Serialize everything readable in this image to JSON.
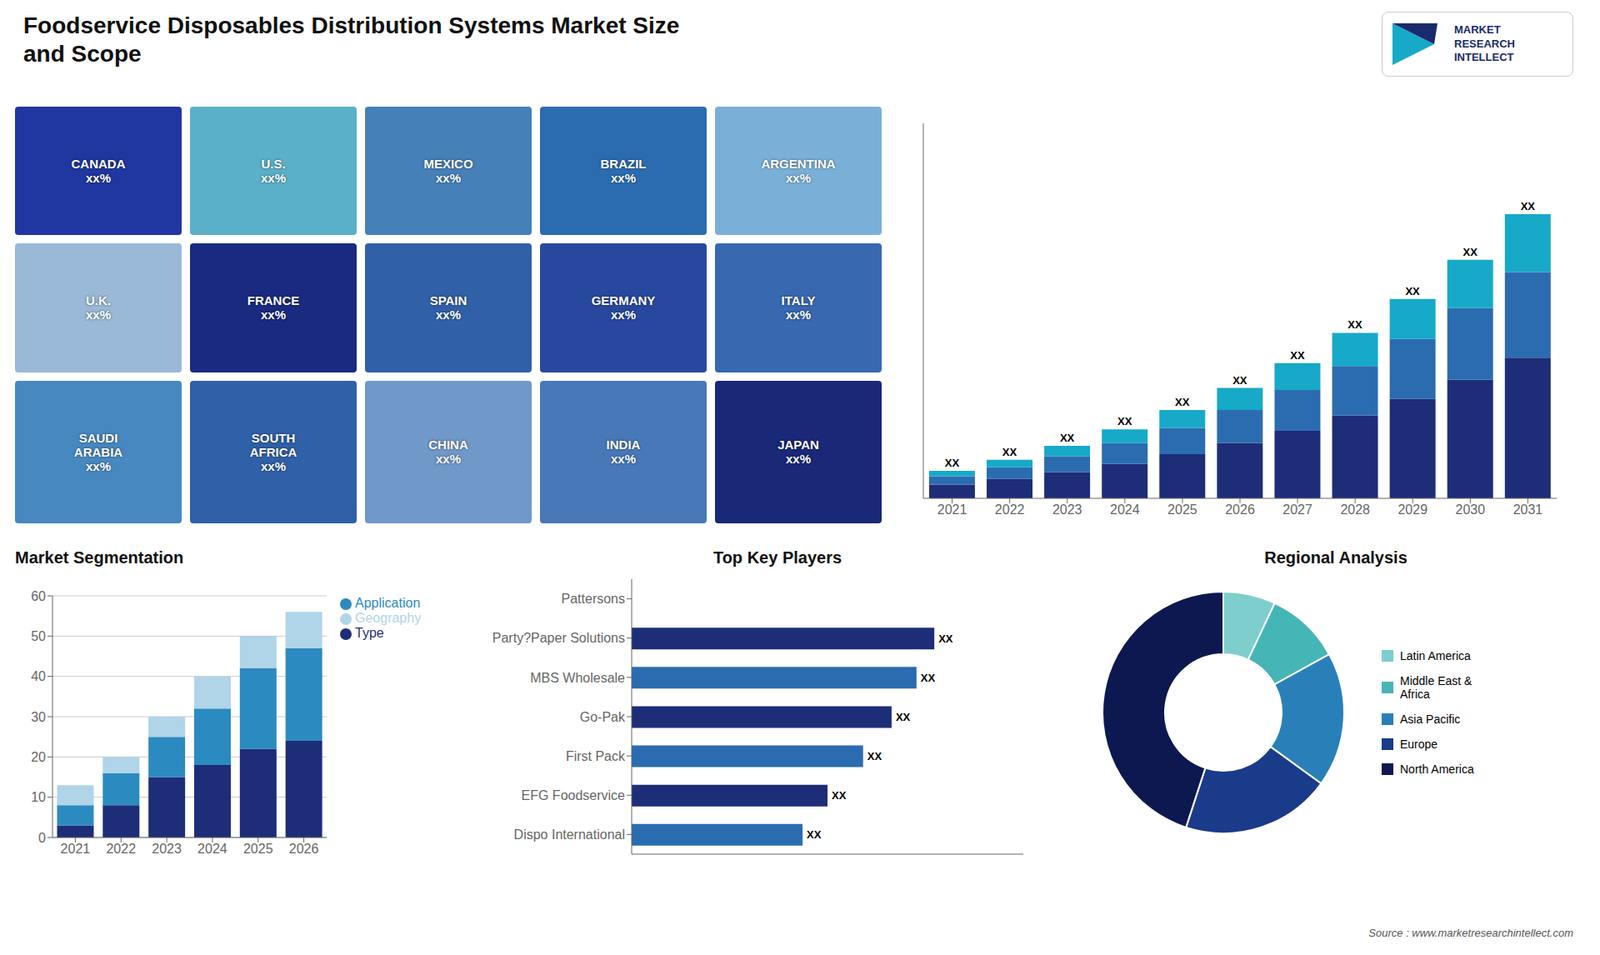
{
  "title": "Foodservice Disposables Distribution Systems Market Size\nand Scope",
  "annotations": [
    "Source : www.marketresearchintellect.com",
    "MARKET",
    "RESEARCH",
    "INTELLECT"
  ],
  "chart_data": [
    {
      "type": "map",
      "categories": [
        "CANADA\nxx%",
        "U.S.\nxx%",
        "MEXICO\nxx%",
        "BRAZIL\nxx%",
        "ARGENTINA\nxx%",
        "U.K.\nxx%",
        "FRANCE\nxx%",
        "SPAIN\nxx%",
        "GERMANY\nxx%",
        "ITALY\nxx%",
        "SAUDI\nARABIA\nxx%",
        "SOUTH\nAFRICA\nxx%",
        "CHINA\nxx%",
        "INDIA\nxx%",
        "JAPAN\nxx%"
      ],
      "colors": [
        "#2036a0",
        "#5ab0c8",
        "#4580b8",
        "#2b6cb0",
        "#7ab0d8",
        "#9ab8d8",
        "#1a2a80",
        "#3060a8",
        "#2848a0",
        "#3868b0",
        "#4888c0",
        "#3060a8",
        "#7098c8",
        "#4878b8",
        "#1a2878"
      ]
    },
    {
      "type": "bar",
      "stacked": true,
      "categories": [
        "2021",
        "2022",
        "2023",
        "2024",
        "2025",
        "2026",
        "2027",
        "2028",
        "2029",
        "2030",
        "2031"
      ],
      "series": [
        {
          "color": "#1e2d78",
          "values": [
            1.0,
            1.4,
            1.9,
            2.5,
            3.2,
            4.0,
            4.9,
            6.0,
            7.2,
            8.6,
            10.2
          ]
        },
        {
          "color": "#2b6cb0",
          "values": [
            0.6,
            0.85,
            1.15,
            1.5,
            1.9,
            2.4,
            2.95,
            3.6,
            4.35,
            5.2,
            6.2
          ]
        },
        {
          "color": "#17a9c8",
          "values": [
            0.4,
            0.55,
            0.75,
            1.0,
            1.3,
            1.6,
            1.95,
            2.4,
            2.9,
            3.5,
            4.2
          ],
          "value_labels": [
            "XX",
            "XX",
            "XX",
            "XX",
            "XX",
            "XX",
            "XX",
            "XX",
            "XX",
            "XX",
            "XX"
          ]
        }
      ],
      "ylim": [
        0,
        27.192
      ],
      "tick_labels": "x",
      "grid": false
    },
    {
      "type": "bar",
      "title": "Market Segmentation",
      "stacked": true,
      "categories": [
        "2021",
        "2022",
        "2023",
        "2024",
        "2025",
        "2026"
      ],
      "series": [
        {
          "name": "Type",
          "color": "#1e2d78",
          "values": [
            3,
            8,
            15,
            18,
            22,
            24
          ]
        },
        {
          "name": "Application",
          "color": "#2b8abf",
          "values": [
            5,
            8,
            10,
            14,
            20,
            23
          ]
        },
        {
          "name": "Geography",
          "color": "#b0d4e8",
          "values": [
            5,
            4,
            5,
            8,
            8,
            9
          ]
        }
      ],
      "ylim": [
        0,
        60
      ],
      "yticks": [
        0,
        10,
        20,
        30,
        40,
        50,
        60
      ],
      "grid": true,
      "legend": "right"
    },
    {
      "type": "bar",
      "orientation": "horizontal",
      "title": "Top Key Players",
      "categories": [
        "Pattersons",
        "Party?Paper Solutions",
        "MBS Wholesale",
        "Go-Pak",
        "First Pack",
        "EFG Foodservice",
        "Dispo International"
      ],
      "values": [
        0,
        85,
        80,
        73,
        65,
        55,
        48
      ],
      "value_labels": [
        null,
        "XX",
        "XX",
        "XX",
        "XX",
        "XX",
        "XX"
      ],
      "colors": [
        "#ffffff",
        "#1e2d78",
        "#2b6cb0",
        "#1e2d78",
        "#2b6cb0",
        "#1e2d78",
        "#2b6cb0"
      ],
      "xlim": [
        0,
        110
      ],
      "tick_labels": "y"
    },
    {
      "type": "pie",
      "title": "Regional Analysis",
      "categories": [
        "Latin America",
        "Middle East &\nAfrica",
        "Asia Pacific",
        "Europe",
        "North America"
      ],
      "values": [
        7,
        10,
        18,
        20,
        45
      ],
      "colors": [
        "#7ecece",
        "#45b5b5",
        "#2980b9",
        "#1a3a8a",
        "#0d1850"
      ],
      "legend": "right"
    }
  ]
}
